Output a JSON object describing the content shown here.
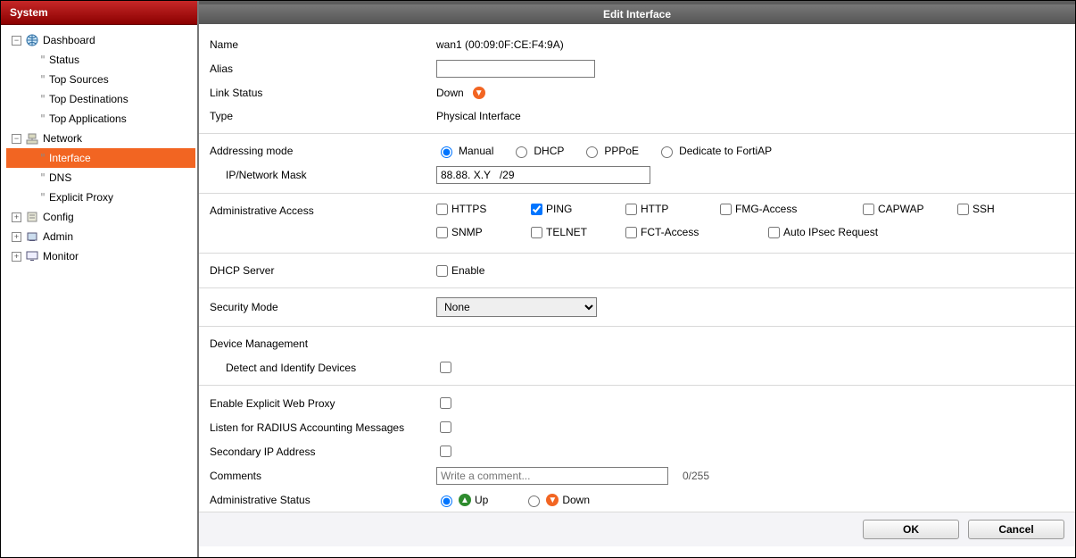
{
  "sidebar": {
    "title": "System",
    "nodes": [
      {
        "label": "Dashboard",
        "icon": "globe",
        "toggle": "−",
        "children": [
          {
            "label": "Status"
          },
          {
            "label": "Top Sources"
          },
          {
            "label": "Top Destinations"
          },
          {
            "label": "Top Applications"
          }
        ]
      },
      {
        "label": "Network",
        "icon": "network",
        "toggle": "−",
        "children": [
          {
            "label": "Interface",
            "selected": true
          },
          {
            "label": "DNS"
          },
          {
            "label": "Explicit Proxy"
          }
        ]
      },
      {
        "label": "Config",
        "icon": "config",
        "toggle": "+"
      },
      {
        "label": "Admin",
        "icon": "admin",
        "toggle": "+"
      },
      {
        "label": "Monitor",
        "icon": "monitor",
        "toggle": "+"
      }
    ]
  },
  "titlebar": "Edit Interface",
  "form": {
    "name_label": "Name",
    "name_value": "wan1 (00:09:0F:CE:F4:9A)",
    "alias_label": "Alias",
    "alias_value": "",
    "link_status_label": "Link Status",
    "link_status_value": "Down",
    "type_label": "Type",
    "type_value": "Physical Interface",
    "addressing_mode_label": "Addressing mode",
    "addressing_modes": [
      {
        "label": "Manual",
        "checked": true
      },
      {
        "label": "DHCP",
        "checked": false
      },
      {
        "label": "PPPoE",
        "checked": false
      },
      {
        "label": "Dedicate to FortiAP",
        "checked": false
      }
    ],
    "ip_label": "IP/Network Mask",
    "ip_value": "88.88. X.Y   /29",
    "admin_access_label": "Administrative Access",
    "admin_access": [
      {
        "label": "HTTPS",
        "checked": false
      },
      {
        "label": "PING",
        "checked": true
      },
      {
        "label": "HTTP",
        "checked": false
      },
      {
        "label": "FMG-Access",
        "checked": false,
        "wide": true
      },
      {
        "label": "CAPWAP",
        "checked": false
      },
      {
        "label": "SSH",
        "checked": false
      },
      {
        "label": "SNMP",
        "checked": false
      },
      {
        "label": "TELNET",
        "checked": false
      },
      {
        "label": "FCT-Access",
        "checked": false,
        "wide": true
      },
      {
        "label": "Auto IPsec Request",
        "checked": false,
        "wide": true
      }
    ],
    "dhcp_server_label": "DHCP Server",
    "dhcp_enable_label": "Enable",
    "dhcp_enable_checked": false,
    "security_mode_label": "Security Mode",
    "security_mode_value": "None",
    "device_mgmt_label": "Device Management",
    "detect_label": "Detect and Identify Devices",
    "detect_checked": false,
    "explicit_proxy_label": "Enable Explicit Web Proxy",
    "explicit_proxy_checked": false,
    "radius_label": "Listen for RADIUS Accounting Messages",
    "radius_checked": false,
    "secondary_ip_label": "Secondary IP Address",
    "secondary_ip_checked": false,
    "comments_label": "Comments",
    "comments_placeholder": "Write a comment...",
    "comments_counter": "0/255",
    "admin_status_label": "Administrative Status",
    "admin_status": [
      {
        "label": "Up",
        "dir": "up",
        "checked": true
      },
      {
        "label": "Down",
        "dir": "down",
        "checked": false
      }
    ]
  },
  "footer": {
    "ok": "OK",
    "cancel": "Cancel"
  },
  "colors": {
    "accent": "#f26522",
    "header_red": "#a01010"
  }
}
